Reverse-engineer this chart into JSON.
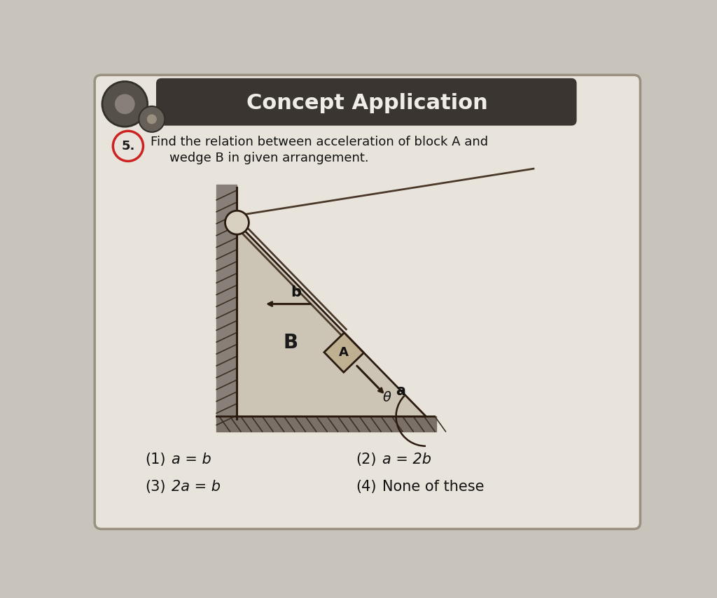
{
  "bg_color": "#c8c4bc",
  "card_color": "#e8e4dc",
  "title": "Concept Application",
  "title_bg": "#3a3530",
  "title_color": "#f0ede8",
  "options": [
    {
      "num": "(1)",
      "text": " a = b"
    },
    {
      "num": "(2)",
      "text": " a = 2b"
    },
    {
      "num": "(3)",
      "text": " 2a = b"
    },
    {
      "num": "(4)",
      "text": " None of these"
    }
  ],
  "line_color": "#2a1a10",
  "wall_color": "#888078",
  "wedge_fill": "#ccc4b4",
  "pulley_fill": "#d8d0c0",
  "block_fill": "#beb090",
  "floor_color": "#7a7068",
  "rope_color": "#4a3828"
}
